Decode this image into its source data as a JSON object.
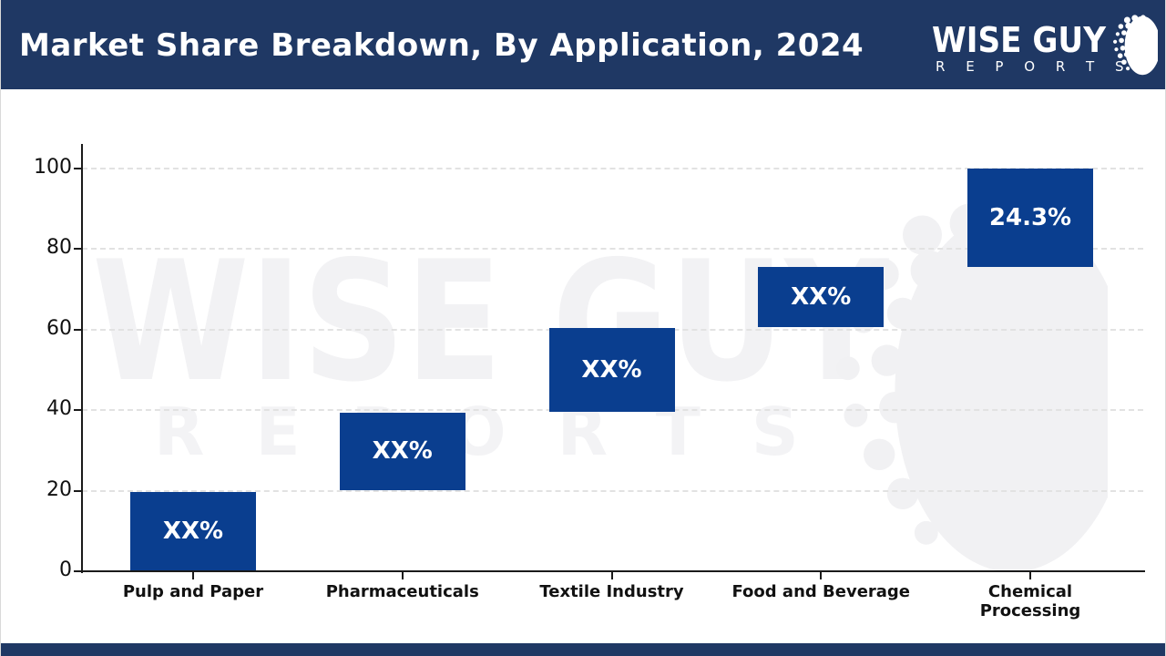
{
  "header": {
    "title": "Market Share Breakdown, By Application, 2024",
    "logo": {
      "line1": "WISE GUY",
      "line2": "R E P O R T S"
    }
  },
  "watermark": {
    "line1": "WISE GUY",
    "line2": "REPORTS"
  },
  "colors": {
    "header_bg": "#1f3864",
    "footer_bg": "#1f3864",
    "bar": "#0a3e8f",
    "bar_label": "#ffffff",
    "grid": "#e2e2e2",
    "axis": "#1a1a1a",
    "watermark": "#f2f2f4"
  },
  "chart_data": {
    "type": "bar",
    "subtype": "waterfall",
    "title": "Market Share Breakdown, By Application, 2024",
    "xlabel": "",
    "ylabel": "",
    "ylim": [
      0,
      106
    ],
    "yticks": [
      0,
      20,
      40,
      60,
      80,
      100
    ],
    "grid": "horizontal-dashed",
    "legend": "none",
    "categories": [
      "Pulp and Paper",
      "Pharmaceuticals",
      "Textile Industry",
      "Food and Beverage",
      "Chemical Processing"
    ],
    "bars": [
      {
        "category": "Pulp and Paper",
        "label_lines": [
          "Pulp and Paper"
        ],
        "start": 0,
        "end": 19.7,
        "value": 19.7,
        "bar_label": "XX%"
      },
      {
        "category": "Pharmaceuticals",
        "label_lines": [
          "Pharmaceuticals"
        ],
        "start": 20.1,
        "end": 39.4,
        "value": 19.3,
        "bar_label": "XX%"
      },
      {
        "category": "Textile Industry",
        "label_lines": [
          "Textile Industry"
        ],
        "start": 39.5,
        "end": 60.4,
        "value": 20.9,
        "bar_label": "XX%"
      },
      {
        "category": "Food and Beverage",
        "label_lines": [
          "Food and Beverage"
        ],
        "start": 60.6,
        "end": 75.6,
        "value": 15.0,
        "bar_label": "XX%"
      },
      {
        "category": "Chemical Processing",
        "label_lines": [
          "Chemical",
          "Processing"
        ],
        "start": 75.6,
        "end": 99.9,
        "value": 24.3,
        "bar_label": "24.3%"
      }
    ]
  }
}
